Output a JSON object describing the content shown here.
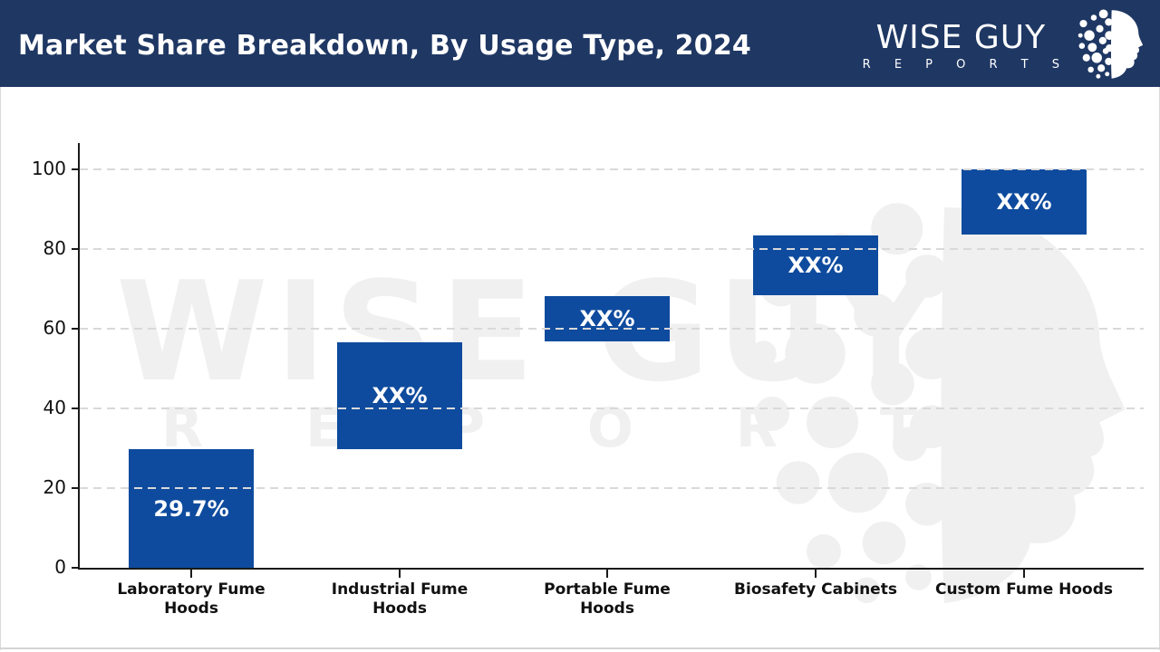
{
  "header": {
    "title": "Market Share Breakdown, By Usage Type, 2024",
    "logo": {
      "primary": "WISE GUY",
      "secondary": "R E P O R T S"
    }
  },
  "watermark": {
    "primary": "WISE GUY",
    "secondary": "R E P O R T S"
  },
  "chart_data": {
    "type": "bar",
    "subtype": "waterfall",
    "title": "Market Share Breakdown, By Usage Type, 2024",
    "categories": [
      "Laboratory Fume Hoods",
      "Industrial Fume Hoods",
      "Portable Fume Hoods",
      "Biosafety Cabinets",
      "Custom Fume Hoods"
    ],
    "category_lines": [
      [
        "Laboratory Fume",
        "Hoods"
      ],
      [
        "Industrial Fume",
        "Hoods"
      ],
      [
        "Portable Fume",
        "Hoods"
      ],
      [
        "Biosafety Cabinets"
      ],
      [
        "Custom Fume Hoods"
      ]
    ],
    "segments": [
      {
        "category": "Laboratory Fume Hoods",
        "from": 0,
        "to": 29.7,
        "label": "29.7%"
      },
      {
        "category": "Industrial Fume Hoods",
        "from": 29.7,
        "to": 56.6,
        "label": "XX%"
      },
      {
        "category": "Portable Fume Hoods",
        "from": 56.8,
        "to": 68.2,
        "label": "XX%"
      },
      {
        "category": "Biosafety Cabinets",
        "from": 68.4,
        "to": 83.4,
        "label": "XX%"
      },
      {
        "category": "Custom Fume Hoods",
        "from": 83.6,
        "to": 100,
        "label": "XX%"
      }
    ],
    "y_ticks": [
      0,
      20,
      40,
      60,
      80,
      100
    ],
    "ylim": [
      0,
      106
    ],
    "xlabel": "",
    "ylabel": "",
    "legend": "none",
    "grid": "dashed-horizontal-over-bars",
    "colors": {
      "bar": "#0e4b9e",
      "bar_label": "#ffffff",
      "grid": "#d9d9d9",
      "axis": "#1a1a1a",
      "header_bg": "#1f3763",
      "watermark": "#f0f0f0"
    }
  }
}
